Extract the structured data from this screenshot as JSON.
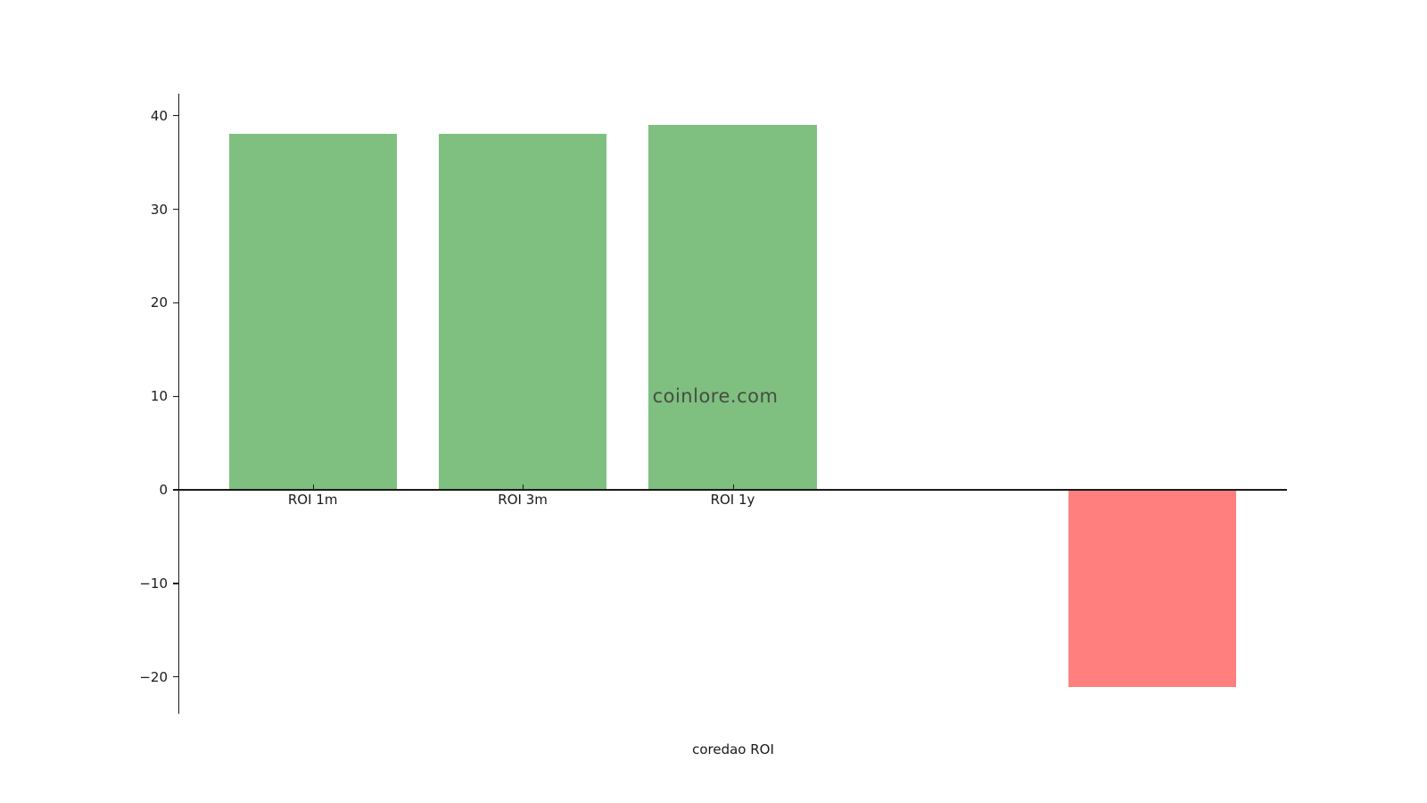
{
  "watermark": "coinlore.com",
  "colors": {
    "positive_bar": "#7fbf7f",
    "negative_bar": "#ff7f7f",
    "axis": "#1a1a1a",
    "watermark_text": "#3a3a3a"
  },
  "chart_data": {
    "type": "bar",
    "title": "",
    "xlabel": "coredao ROI",
    "ylabel": "",
    "categories": [
      "ROI 1m",
      "ROI 3m",
      "ROI 1y"
    ],
    "bars": [
      {
        "label": "ROI 1m",
        "position": 0,
        "value": 38,
        "color": "#7fbf7f"
      },
      {
        "label": "ROI 3m",
        "position": 1,
        "value": 38,
        "color": "#7fbf7f"
      },
      {
        "label": "ROI 1y",
        "position": 2,
        "value": 39,
        "color": "#7fbf7f"
      },
      {
        "label": "",
        "position": 4,
        "value": -21,
        "color": "#ff7f7f"
      }
    ],
    "bar_width_units": 0.8,
    "yticks": [
      40,
      30,
      20,
      10,
      0,
      -10,
      -20
    ],
    "ylim": [
      -24,
      42.3
    ],
    "xlim": [
      -0.64,
      4.64
    ],
    "grid": false,
    "legend": null
  }
}
